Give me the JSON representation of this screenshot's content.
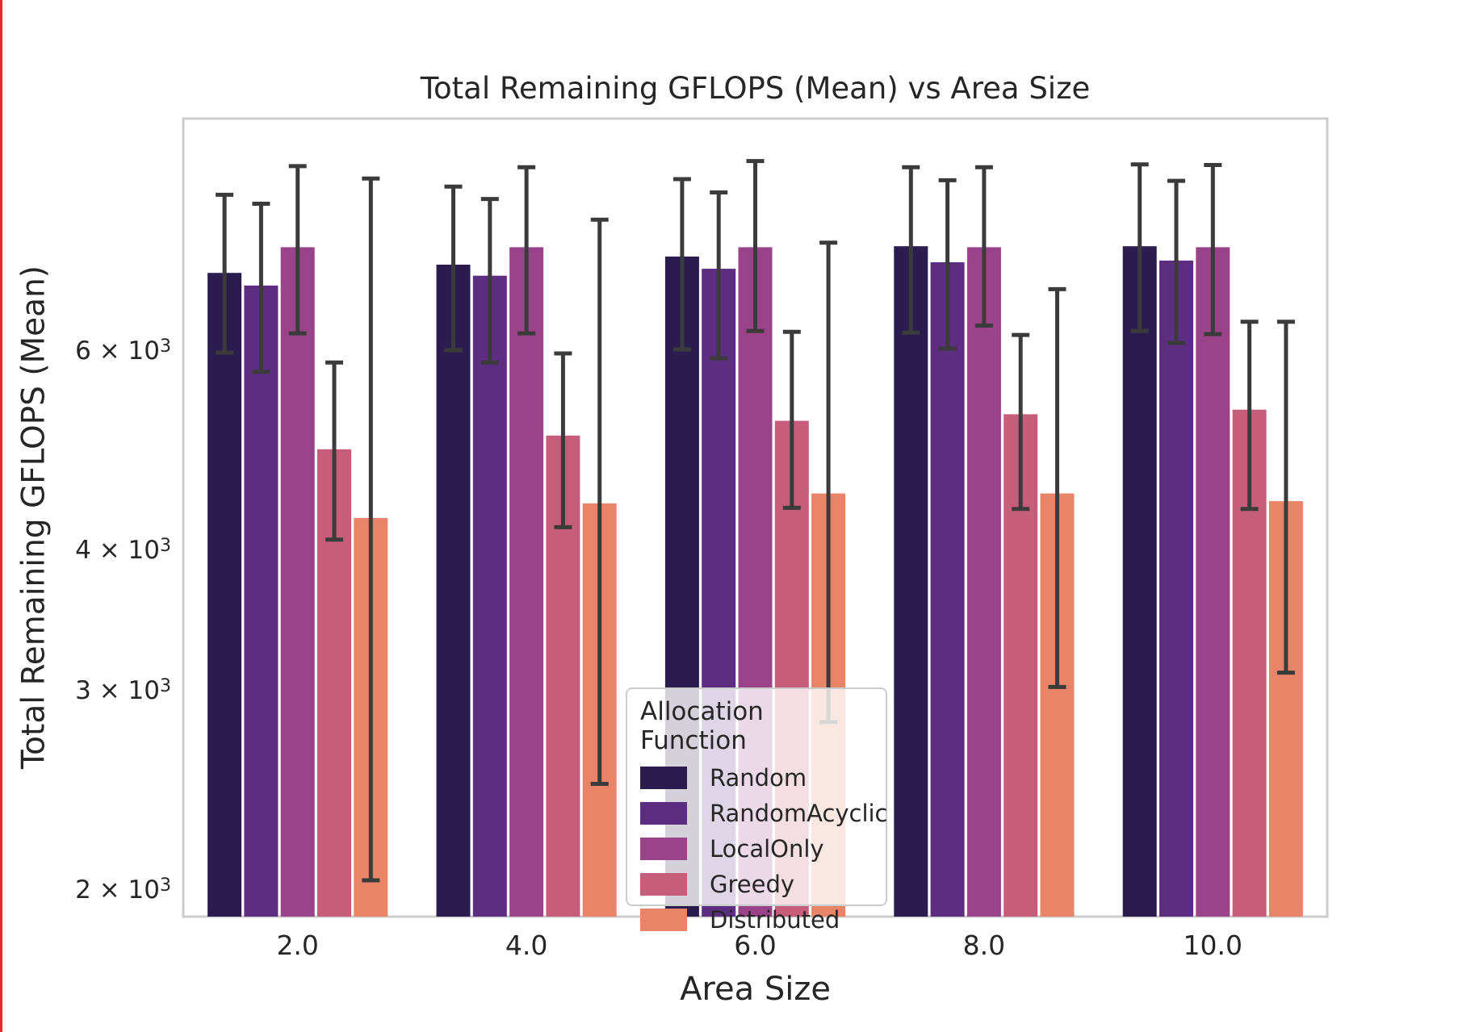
{
  "figure": {
    "title": "Total Remaining GFLOPS (Mean) vs Area Size",
    "xlabel": "Area Size",
    "ylabel": "Total Remaining GFLOPS (Mean)"
  },
  "legend": {
    "title": "Allocation Function",
    "entries": [
      {
        "label": "Random",
        "color": "#2a1c4e"
      },
      {
        "label": "RandomAcyclic",
        "color": "#5c2d80"
      },
      {
        "label": "LocalOnly",
        "color": "#9b4388"
      },
      {
        "label": "Greedy",
        "color": "#c65d7a"
      },
      {
        "label": "Distributed",
        "color": "#e88568"
      }
    ]
  },
  "axes": {
    "x_ticks": [
      "2.0",
      "4.0",
      "6.0",
      "8.0",
      "10.0"
    ],
    "y_ticks": [
      {
        "value": 6000,
        "mantissa": "6",
        "exponent": "3"
      },
      {
        "value": 4000,
        "mantissa": "4",
        "exponent": "3"
      },
      {
        "value": 3000,
        "mantissa": "3",
        "exponent": "3"
      },
      {
        "value": 2000,
        "mantissa": "2",
        "exponent": "3"
      }
    ]
  },
  "chart_data": {
    "type": "bar",
    "title": "Total Remaining GFLOPS (Mean) vs Area Size",
    "xlabel": "Area Size",
    "ylabel": "Total Remaining GFLOPS (Mean)",
    "log_y": true,
    "ylim": [
      1900,
      9700
    ],
    "legend_position": "lower center-right inside",
    "grid": false,
    "categories": [
      2.0,
      4.0,
      6.0,
      8.0,
      10.0
    ],
    "series": [
      {
        "name": "Random",
        "color": "#2a1c4e",
        "values": [
          7070,
          7190,
          7310,
          7465,
          7465
        ],
        "err_low": [
          6010,
          6040,
          6050,
          6260,
          6280
        ],
        "err_high": [
          8290,
          8430,
          8560,
          8770,
          8820
        ]
      },
      {
        "name": "RandomAcyclic",
        "color": "#5c2d80",
        "values": [
          6890,
          7030,
          7130,
          7225,
          7250
        ],
        "err_low": [
          5780,
          5890,
          5940,
          6060,
          6130
        ],
        "err_high": [
          8140,
          8220,
          8330,
          8540,
          8530
        ]
      },
      {
        "name": "LocalOnly",
        "color": "#9b4388",
        "values": [
          7450,
          7450,
          7450,
          7450,
          7450
        ],
        "err_low": [
          6250,
          6250,
          6280,
          6350,
          6240
        ],
        "err_high": [
          8790,
          8770,
          8880,
          8770,
          8810
        ]
      },
      {
        "name": "Greedy",
        "color": "#c65d7a",
        "values": [
          4935,
          5075,
          5230,
          5300,
          5350
        ],
        "err_low": [
          4105,
          4210,
          4380,
          4370,
          4370
        ],
        "err_high": [
          5890,
          6000,
          6270,
          6230,
          6400
        ]
      },
      {
        "name": "Distributed",
        "color": "#e88568",
        "values": [
          4290,
          4420,
          4510,
          4510,
          4440
        ],
        "err_low": [
          2050,
          2495,
          2830,
          3040,
          3130
        ],
        "err_high": [
          8570,
          7880,
          7520,
          6840,
          6400
        ]
      }
    ],
    "error_bar_color": "#3b3b3b",
    "plot_border_color": "#cccccc"
  }
}
